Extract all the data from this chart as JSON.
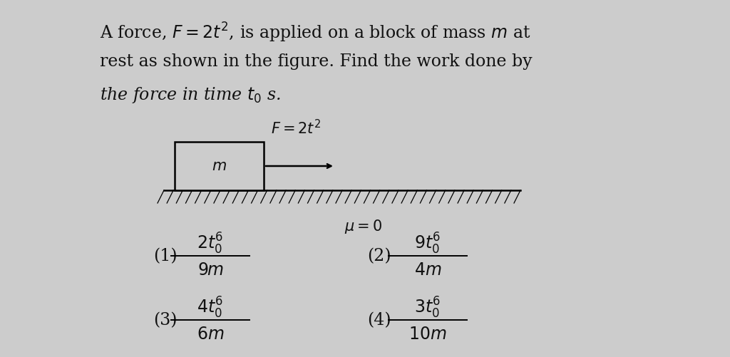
{
  "background_color": "#cccccc",
  "text_color": "#111111",
  "title_line1": "A force, $F = 2t^2$, is applied on a block of mass $m$ at",
  "title_line2": "rest as shown in the figure. Find the work done by",
  "title_line3": "the force in time $t_0$ s.",
  "block_label": "$m$",
  "force_label": "$F = 2t^2$",
  "mu_label": "$\\mu = 0$",
  "options": [
    {
      "num": "(1)",
      "numer": "$2t_0^6$",
      "denom": "$9m$"
    },
    {
      "num": "(2)",
      "numer": "$9t_0^6$",
      "denom": "$4m$"
    },
    {
      "num": "(3)",
      "numer": "$4t_0^6$",
      "denom": "$6m$"
    },
    {
      "num": "(4)",
      "numer": "$3t_0^6$",
      "denom": "$10m$"
    }
  ],
  "title_fontsize": 17,
  "option_fontsize": 17,
  "fig_fontsize": 15
}
